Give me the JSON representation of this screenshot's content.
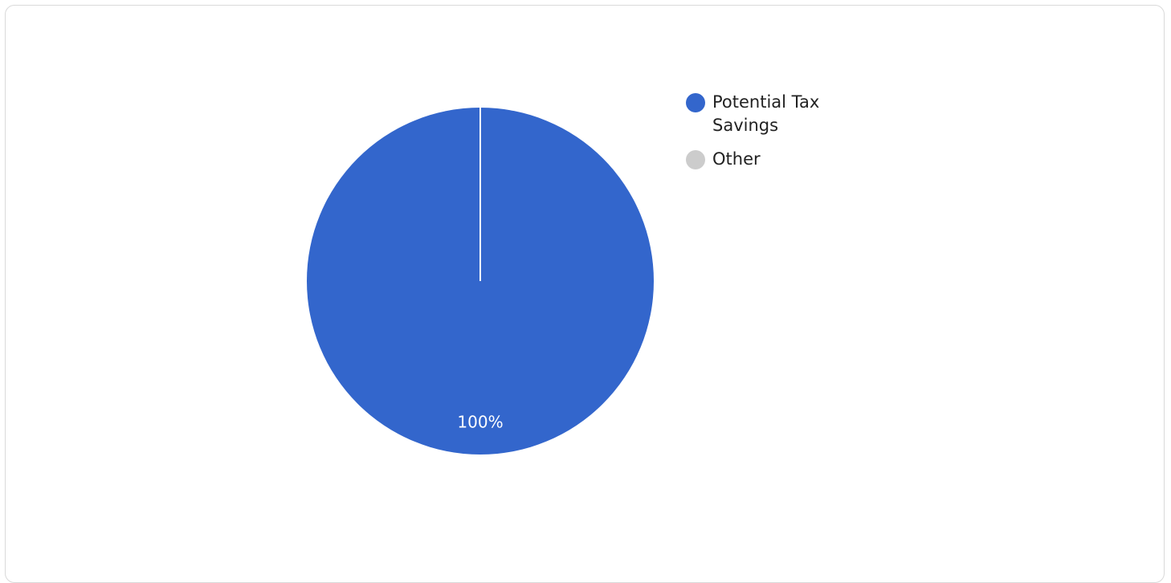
{
  "chart_data": {
    "type": "pie",
    "categories": [
      "Potential Tax Savings",
      "Other"
    ],
    "values": [
      100,
      0
    ],
    "colors": [
      "#3366cc",
      "#cccccc"
    ],
    "data_labels": [
      "100%",
      ""
    ],
    "legend_position": "right",
    "title": ""
  },
  "legend": {
    "items": [
      {
        "label_lines": [
          "Potential Tax",
          "Savings"
        ],
        "color": "#3366cc"
      },
      {
        "label_lines": [
          "Other"
        ],
        "color": "#cccccc"
      }
    ]
  }
}
